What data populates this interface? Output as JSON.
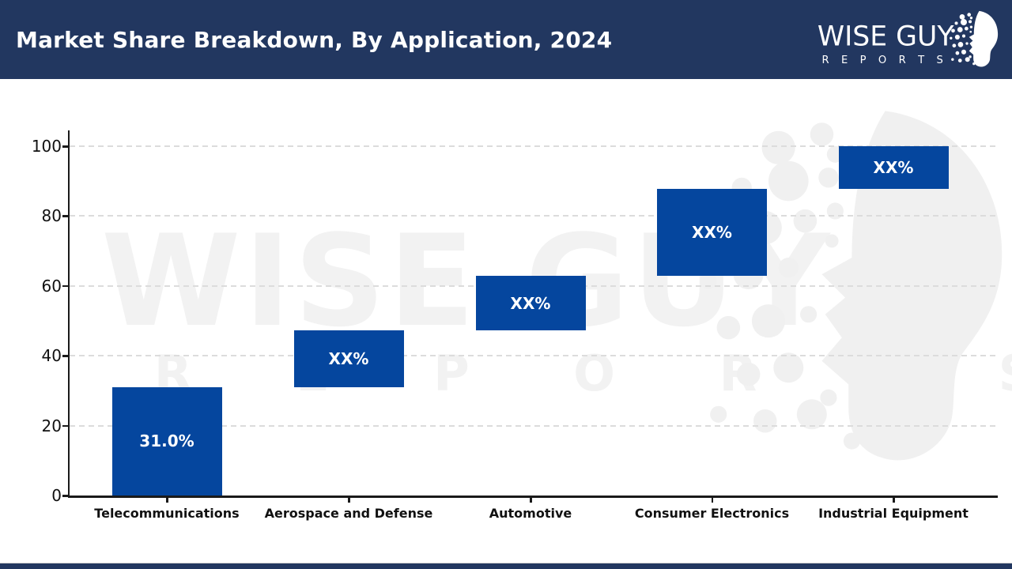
{
  "header": {
    "title": "Market Share Breakdown, By Application, 2024",
    "brand": {
      "wordmark": "WISE GUY",
      "subtext": "R E P O R T S"
    }
  },
  "watermark": {
    "wordmark": "WISE GUY",
    "subtext": "R E P O R T S"
  },
  "colors": {
    "header_bg": "#223760",
    "footer_bg": "#223760",
    "bar_fill": "#05469e",
    "bar_label": "#ffffff",
    "gridline": "#dcdcdc",
    "axis": "#1a1a1a",
    "watermark_text": "#f2f2f2",
    "watermark_face": "#f0f0f0"
  },
  "chart_data": {
    "type": "bar",
    "subtype": "waterfall",
    "title": "Market Share Breakdown, By Application, 2024",
    "categories": [
      "Telecommunications",
      "Aerospace and Defense",
      "Automotive",
      "Consumer Electronics",
      "Industrial Equipment"
    ],
    "segments": [
      {
        "category": "Telecommunications",
        "start": 0,
        "end": 31.0,
        "label": "31.0%"
      },
      {
        "category": "Aerospace and Defense",
        "start": 31.0,
        "end": 47.2,
        "label": "XX%"
      },
      {
        "category": "Automotive",
        "start": 47.2,
        "end": 62.9,
        "label": "XX%"
      },
      {
        "category": "Consumer Electronics",
        "start": 62.9,
        "end": 87.7,
        "label": "XX%"
      },
      {
        "category": "Industrial Equipment",
        "start": 87.7,
        "end": 100.0,
        "label": "XX%"
      }
    ],
    "y_ticks": [
      0,
      20,
      40,
      60,
      80,
      100
    ],
    "ylim": [
      0,
      105
    ],
    "xlabel": "",
    "ylabel": "",
    "grid": "horizontal-dashed",
    "legend": "none"
  }
}
